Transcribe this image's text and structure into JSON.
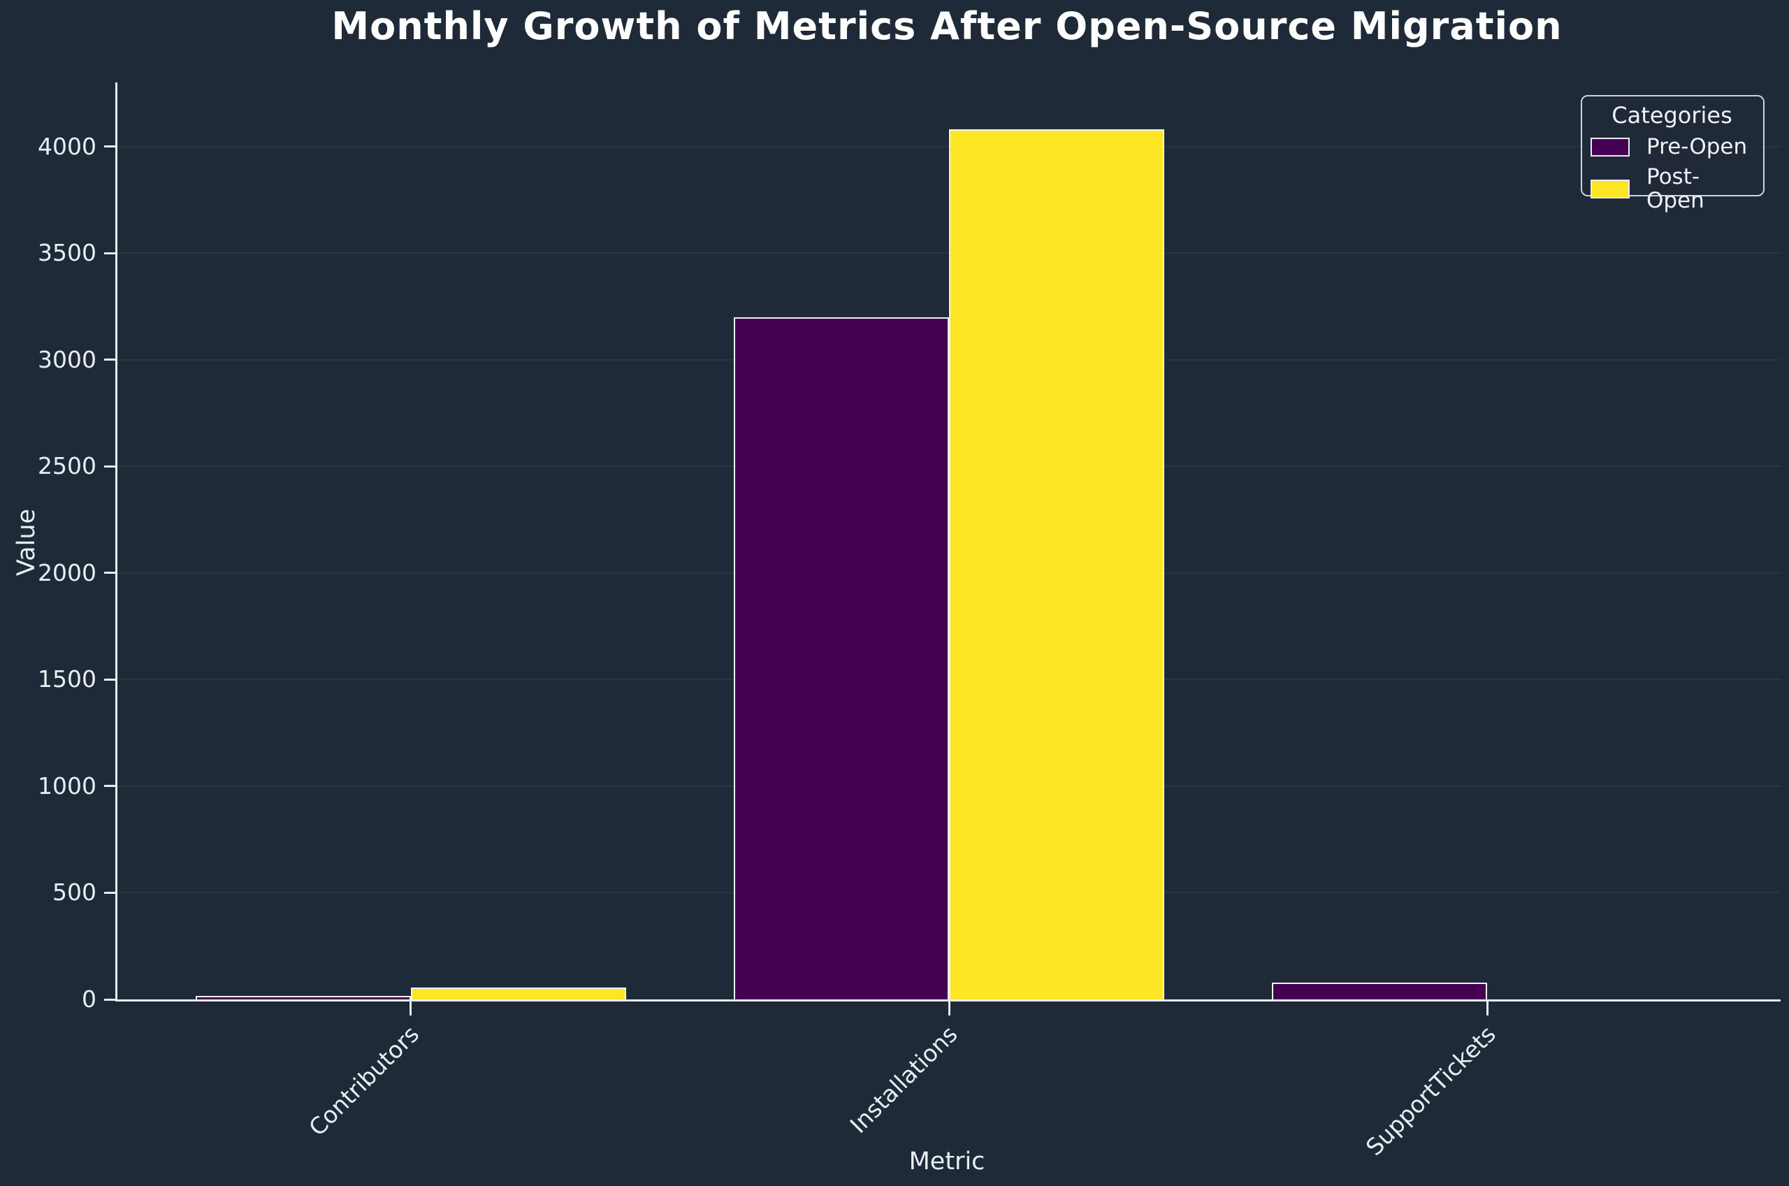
{
  "colors": {
    "background": "#1f2a38",
    "text": "#e9eef3",
    "axis": "#e8edf2",
    "grid_alpha": "rgba(235,240,245,0.06)",
    "pre_open": "#440154",
    "post_open": "#fde725"
  },
  "chart_data": {
    "type": "bar",
    "title": "Monthly Growth of Metrics After Open-Source Migration",
    "xlabel": "Metric",
    "ylabel": "Value",
    "categories": [
      "Contributors",
      "Installations",
      "SupportTickets"
    ],
    "series": [
      {
        "name": "Pre-Open",
        "color": "#440154",
        "values": [
          15,
          3200,
          80
        ]
      },
      {
        "name": "Post-Open",
        "color": "#fde725",
        "values": [
          55,
          4080,
          0
        ]
      }
    ],
    "ylim": [
      0,
      4300
    ],
    "yticks": [
      0,
      500,
      1000,
      1500,
      2000,
      2500,
      3000,
      3500,
      4000
    ],
    "grid": true,
    "legend": {
      "title": "Categories",
      "position": "upper-right"
    }
  }
}
